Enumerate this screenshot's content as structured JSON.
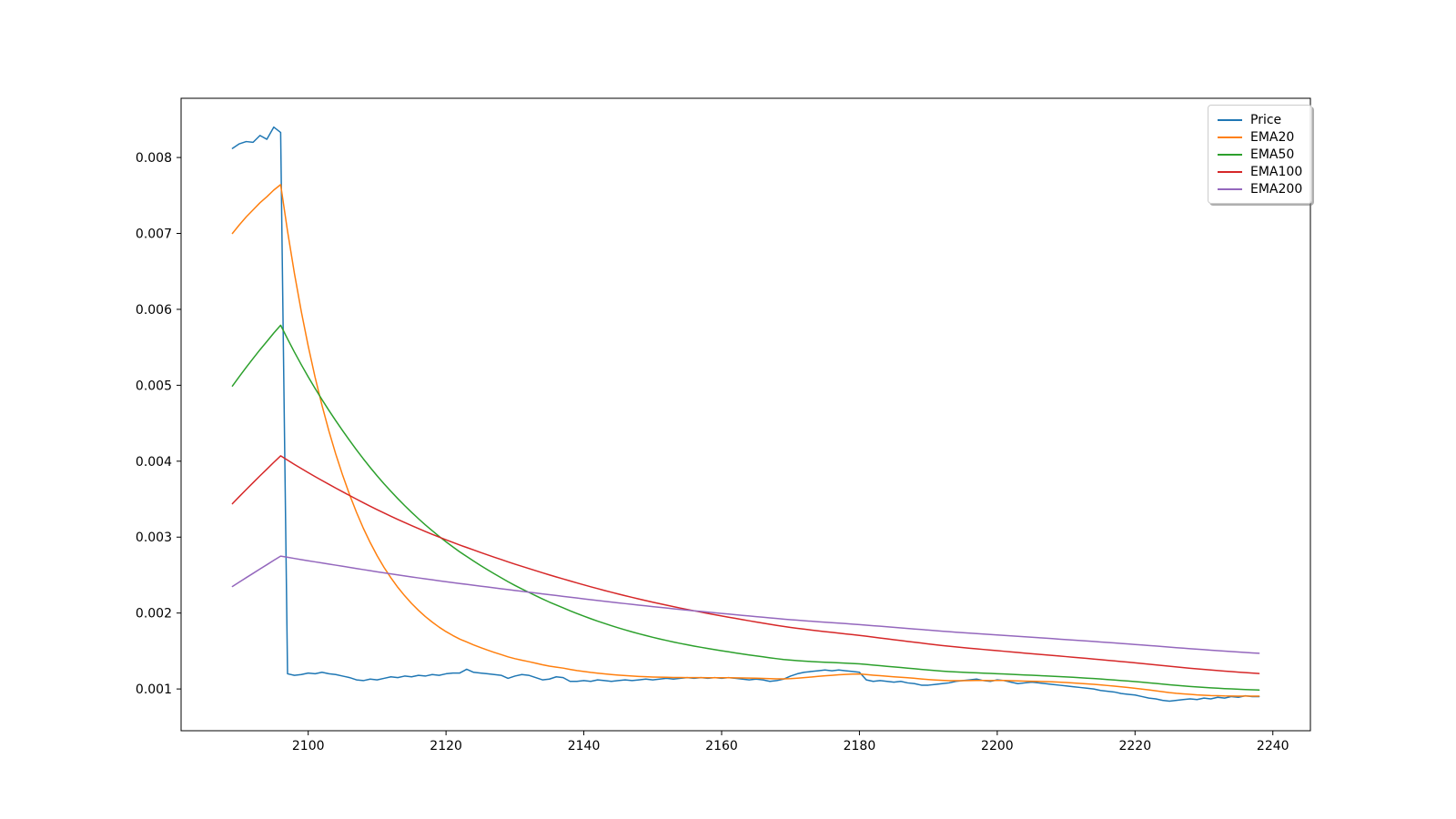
{
  "figure": {
    "background": "#ffffff"
  },
  "chart_data": {
    "type": "line",
    "title": "",
    "xlabel": "",
    "ylabel": "",
    "grid": false,
    "x_start": 2089,
    "x_step": 1,
    "n_points": 150,
    "axes": {
      "xlim": [
        2081.55,
        2245.45
      ],
      "ylim": [
        0.00045,
        0.00878
      ],
      "xticks": [
        {
          "value": 2100,
          "label": "2100"
        },
        {
          "value": 2120,
          "label": "2120"
        },
        {
          "value": 2140,
          "label": "2140"
        },
        {
          "value": 2160,
          "label": "2160"
        },
        {
          "value": 2180,
          "label": "2180"
        },
        {
          "value": 2200,
          "label": "2200"
        },
        {
          "value": 2220,
          "label": "2220"
        },
        {
          "value": 2240,
          "label": "2240"
        }
      ],
      "yticks": [
        {
          "value": 0.001,
          "label": "0.001"
        },
        {
          "value": 0.002,
          "label": "0.002"
        },
        {
          "value": 0.003,
          "label": "0.003"
        },
        {
          "value": 0.004,
          "label": "0.004"
        },
        {
          "value": 0.005,
          "label": "0.005"
        },
        {
          "value": 0.006,
          "label": "0.006"
        },
        {
          "value": 0.007,
          "label": "0.007"
        },
        {
          "value": 0.008,
          "label": "0.008"
        }
      ]
    },
    "series": [
      {
        "name": "Price",
        "color": "#1f77b4",
        "values": [
          0.00812,
          0.00818,
          0.00821,
          0.0082,
          0.00829,
          0.00824,
          0.0084,
          0.00833,
          0.0012,
          0.00118,
          0.00119,
          0.00121,
          0.0012,
          0.00122,
          0.0012,
          0.00119,
          0.00117,
          0.00115,
          0.00112,
          0.00111,
          0.00113,
          0.00112,
          0.00114,
          0.00116,
          0.00115,
          0.00117,
          0.00116,
          0.00118,
          0.00117,
          0.00119,
          0.00118,
          0.0012,
          0.00121,
          0.00121,
          0.00126,
          0.00122,
          0.00121,
          0.0012,
          0.00119,
          0.00118,
          0.00114,
          0.00117,
          0.00119,
          0.00118,
          0.00115,
          0.00112,
          0.00113,
          0.00116,
          0.00115,
          0.0011,
          0.0011,
          0.00111,
          0.0011,
          0.00112,
          0.00111,
          0.0011,
          0.00111,
          0.00112,
          0.00111,
          0.00112,
          0.00113,
          0.00112,
          0.00113,
          0.00114,
          0.00113,
          0.00114,
          0.00115,
          0.00114,
          0.00115,
          0.00114,
          0.00115,
          0.00114,
          0.00115,
          0.00114,
          0.00113,
          0.00112,
          0.00113,
          0.00112,
          0.0011,
          0.00111,
          0.00113,
          0.00117,
          0.0012,
          0.00122,
          0.00123,
          0.00124,
          0.00125,
          0.00124,
          0.00125,
          0.00124,
          0.00123,
          0.00122,
          0.00112,
          0.0011,
          0.00111,
          0.0011,
          0.00109,
          0.0011,
          0.00108,
          0.00107,
          0.00105,
          0.00105,
          0.00106,
          0.00107,
          0.00108,
          0.0011,
          0.00111,
          0.00112,
          0.00113,
          0.00111,
          0.0011,
          0.00112,
          0.00111,
          0.00109,
          0.00107,
          0.00108,
          0.00109,
          0.00108,
          0.00107,
          0.00106,
          0.00105,
          0.00104,
          0.00103,
          0.00102,
          0.00101,
          0.001,
          0.00098,
          0.00097,
          0.00096,
          0.00094,
          0.00093,
          0.00092,
          0.0009,
          0.00088,
          0.00087,
          0.00085,
          0.00084,
          0.00085,
          0.00086,
          0.00087,
          0.00086,
          0.00088,
          0.00087,
          0.00089,
          0.00088,
          0.0009,
          0.00089,
          0.00091,
          0.0009,
          0.0009
        ]
      },
      {
        "name": "EMA20",
        "color": "#ff7f0e",
        "derived": "ema",
        "source": "Price",
        "period": 20,
        "initial": 0.007
      },
      {
        "name": "EMA50",
        "color": "#2ca02c",
        "derived": "ema",
        "source": "Price",
        "period": 50,
        "initial": 0.00499
      },
      {
        "name": "EMA100",
        "color": "#d62728",
        "derived": "ema",
        "source": "Price",
        "period": 100,
        "initial": 0.00344
      },
      {
        "name": "EMA200",
        "color": "#9467bd",
        "derived": "ema",
        "source": "Price",
        "period": 200,
        "initial": 0.00235
      }
    ],
    "legend": {
      "position": "upper right",
      "entries": [
        "Price",
        "EMA20",
        "EMA50",
        "EMA100",
        "EMA200"
      ]
    }
  }
}
